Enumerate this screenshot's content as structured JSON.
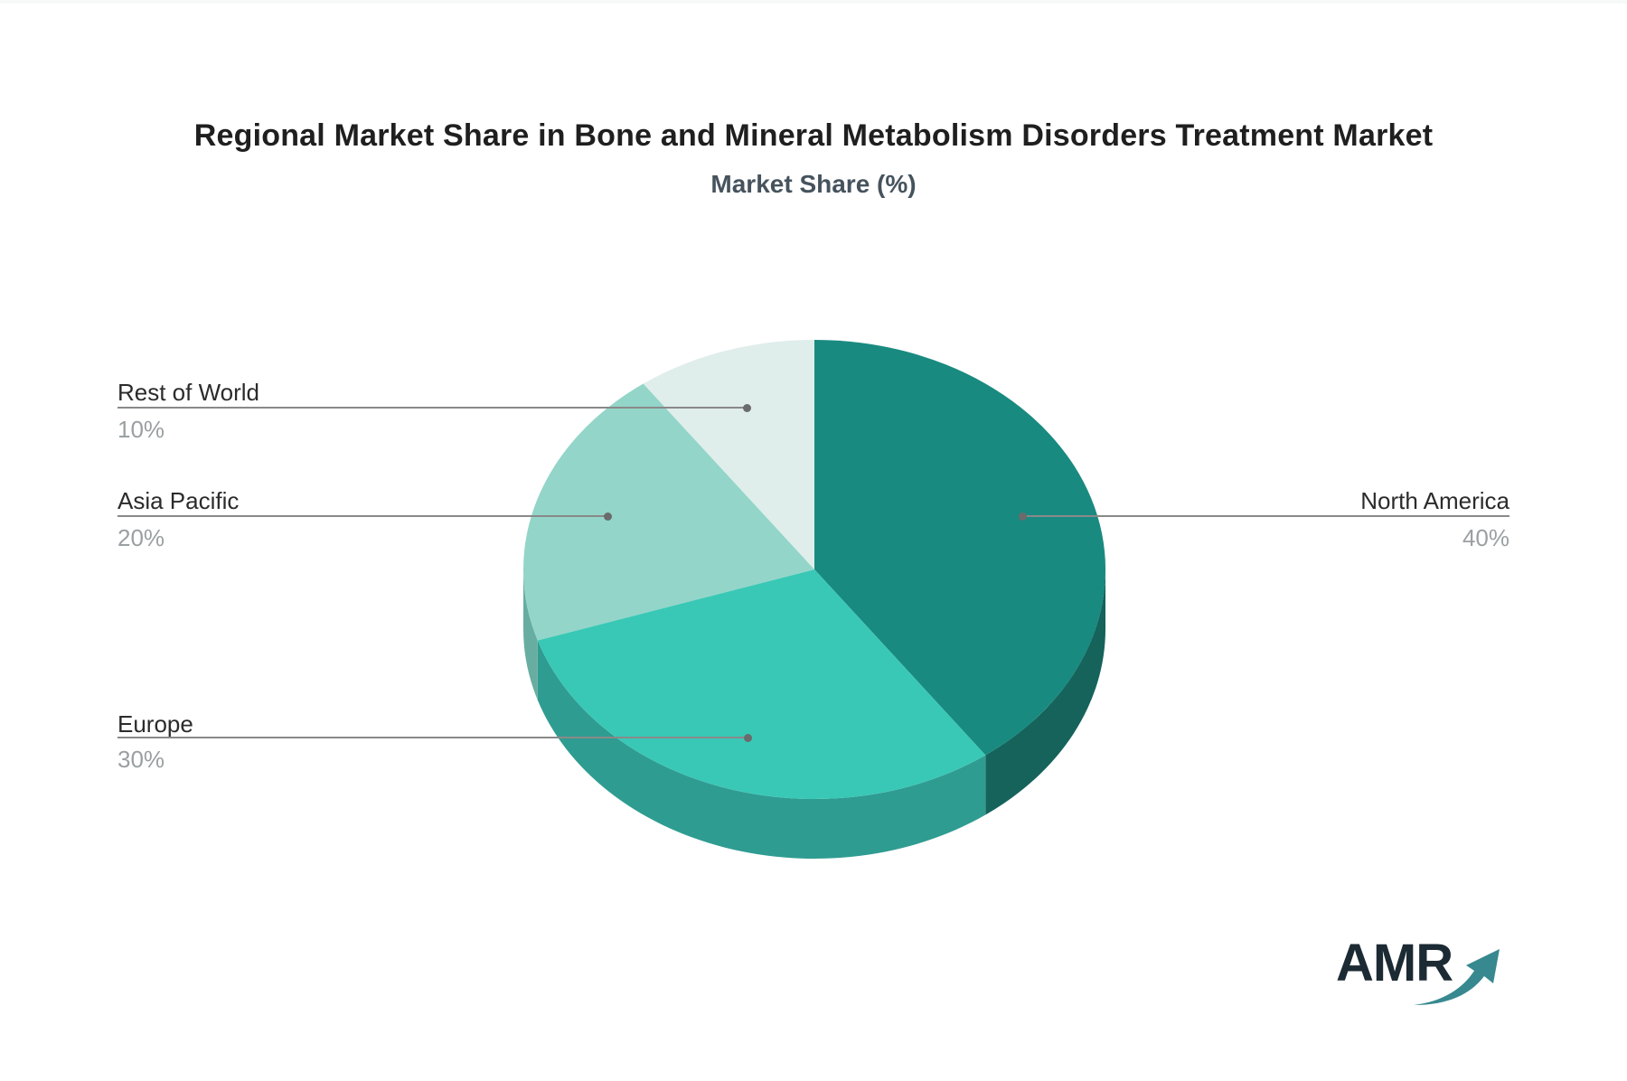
{
  "header": {
    "title": "Regional Market Share in Bone and Mineral Metabolism Disorders Treatment Market",
    "subtitle": "Market Share (%)"
  },
  "chart_data": {
    "type": "pie",
    "title": "Regional Market Share in Bone and Mineral Metabolism Disorders Treatment Market",
    "subtitle": "Market Share (%)",
    "unit": "%",
    "effect": "3d",
    "start_angle_deg": 0,
    "direction": "clockwise",
    "legend_position": "callouts",
    "categories": [
      "North America",
      "Europe",
      "Asia Pacific",
      "Rest of World"
    ],
    "values": [
      40,
      30,
      20,
      10
    ],
    "slices": [
      {
        "label": "North America",
        "value": 40,
        "pct_label": "40%",
        "color": "#198a80",
        "side_color": "#15635b",
        "callout_side": "right"
      },
      {
        "label": "Europe",
        "value": 30,
        "pct_label": "30%",
        "color": "#3ac8b6",
        "side_color": "#2f9c91",
        "callout_side": "left"
      },
      {
        "label": "Asia Pacific",
        "value": 20,
        "pct_label": "20%",
        "color": "#93d5c9",
        "side_color": "#68ada1",
        "callout_side": "left"
      },
      {
        "label": "Rest of World",
        "value": 10,
        "pct_label": "10%",
        "color": "#dfedeb",
        "side_color": "#b9d8d3",
        "callout_side": "left"
      }
    ],
    "callout_line_color": "#898989",
    "label_color": "#2b2b2b",
    "pct_color": "#9aa0a2"
  },
  "logo": {
    "text": "AMR",
    "arrow_color": "#37898f",
    "text_color": "#1c2a33"
  }
}
